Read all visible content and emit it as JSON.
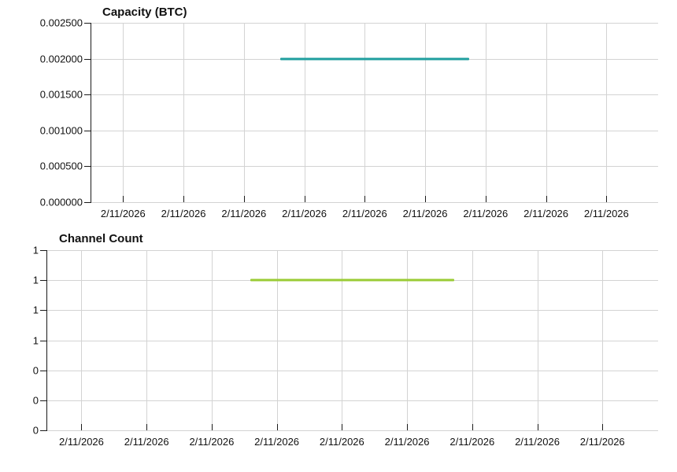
{
  "page": {
    "background": "#ffffff",
    "grid_color": "#d3d3d3",
    "axis_color": "#1a1a1a",
    "text_color": "#111111"
  },
  "chart_data": [
    {
      "type": "line",
      "title": "Capacity (BTC)",
      "xlabel": "",
      "ylabel": "",
      "ylim": [
        0,
        0.0025
      ],
      "grid": true,
      "legend_position": "none",
      "y_ticks": [
        0.0025,
        0.002,
        0.0015,
        0.001,
        0.0005,
        0
      ],
      "y_tick_labels": [
        "0.002500",
        "0.002000",
        "0.001500",
        "0.001000",
        "0.000500",
        "0.000000"
      ],
      "x_tick_labels": [
        "2/11/2026",
        "2/11/2026",
        "2/11/2026",
        "2/11/2026",
        "2/11/2026",
        "2/11/2026",
        "2/11/2026",
        "2/11/2026",
        "2/11/2026"
      ],
      "x_first_tick_frac": 0.056,
      "x_tick_spacing_frac": 0.1066,
      "series": [
        {
          "name": "capacity",
          "color": "#1F9E9E",
          "constant_value": 0.002,
          "x_span_frac": [
            0.333,
            0.666
          ]
        }
      ]
    },
    {
      "type": "line",
      "title": "Channel Count",
      "xlabel": "",
      "ylabel": "",
      "ylim": [
        0,
        1.2
      ],
      "grid": true,
      "legend_position": "none",
      "y_ticks": [
        1.2,
        1.0,
        0.8,
        0.6,
        0.4,
        0.2,
        0
      ],
      "y_tick_labels": [
        "1",
        "1",
        "1",
        "1",
        "0",
        "0",
        "0"
      ],
      "x_tick_labels": [
        "2/11/2026",
        "2/11/2026",
        "2/11/2026",
        "2/11/2026",
        "2/11/2026",
        "2/11/2026",
        "2/11/2026",
        "2/11/2026",
        "2/11/2026"
      ],
      "x_first_tick_frac": 0.056,
      "x_tick_spacing_frac": 0.1066,
      "series": [
        {
          "name": "channel-count",
          "color": "#9ACB35",
          "constant_value": 1,
          "x_span_frac": [
            0.333,
            0.666
          ]
        }
      ]
    }
  ]
}
